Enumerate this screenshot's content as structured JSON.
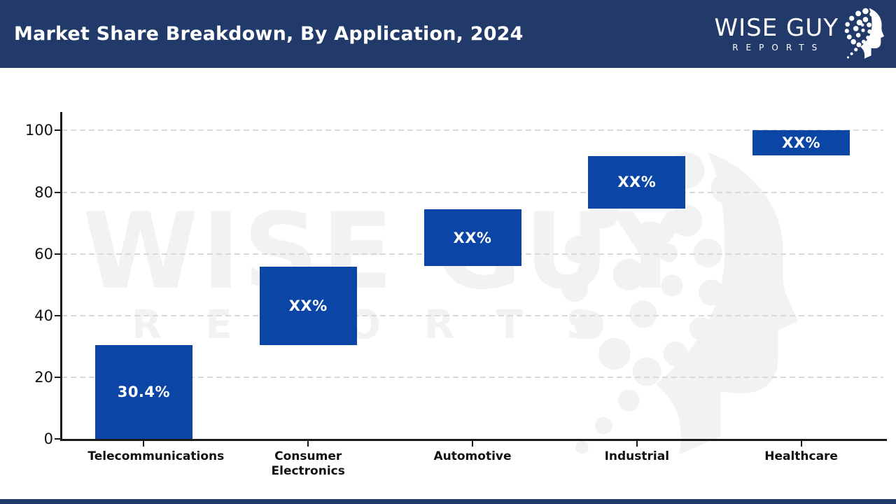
{
  "header": {
    "title": "Market Share Breakdown, By Application, 2024",
    "logo": {
      "brand": "WISE GUY",
      "sub": "REPORTS"
    }
  },
  "watermark": {
    "brand": "WISE GUY",
    "sub": "REPORTS"
  },
  "colors": {
    "header_bg": "#223a69",
    "bar_fill": "#0b45a5",
    "bar_label_text": "#ffffff",
    "grid": "#d9d9d9",
    "axis": "#1a1a1a",
    "tick_text": "#111111",
    "watermark": "#f2f2f2"
  },
  "chart_data": {
    "type": "bar",
    "variant": "waterfall",
    "title": "Market Share Breakdown, By Application, 2024",
    "categories": [
      "Telecommunications",
      "Consumer Electronics",
      "Automotive",
      "Industrial",
      "Healthcare"
    ],
    "segments": [
      {
        "category": "Telecommunications",
        "start": 0,
        "end": 30.4,
        "label": "30.4%"
      },
      {
        "category": "Consumer Electronics",
        "start": 30.4,
        "end": 55.9,
        "label": "XX%"
      },
      {
        "category": "Automotive",
        "start": 56.0,
        "end": 74.5,
        "label": "XX%"
      },
      {
        "category": "Industrial",
        "start": 74.7,
        "end": 91.8,
        "label": "XX%"
      },
      {
        "category": "Healthcare",
        "start": 91.9,
        "end": 100,
        "label": "XX%"
      }
    ],
    "yticks": [
      0,
      20,
      40,
      60,
      80,
      100
    ],
    "ylim": [
      0,
      106
    ],
    "xlabel": "",
    "ylabel": "",
    "unit": "percent",
    "grid": "horizontal-dashed",
    "legend": "none"
  }
}
